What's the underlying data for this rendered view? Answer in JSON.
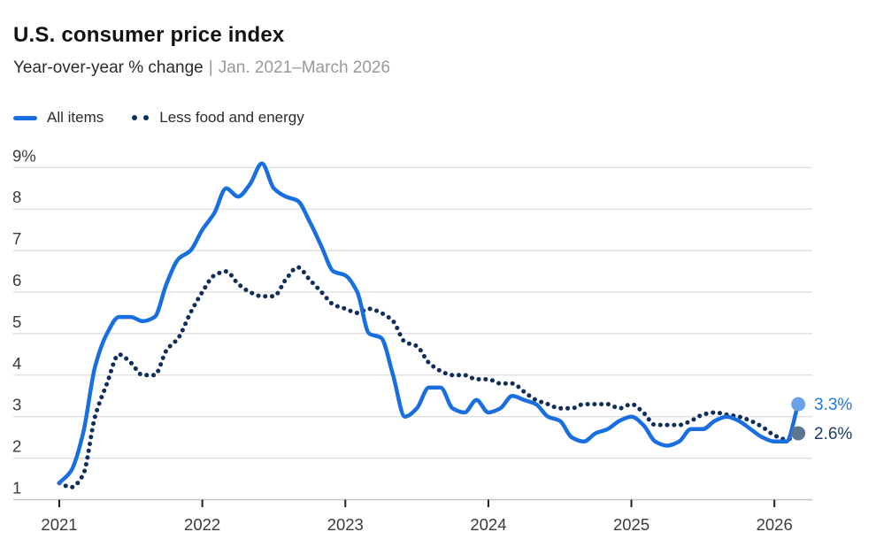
{
  "header": {
    "title": "U.S. consumer price index",
    "subtitle_main": "Year-over-year % change",
    "subtitle_sep": "|",
    "subtitle_range": "Jan. 2021–March 2026"
  },
  "legend": [
    {
      "label": "All items",
      "style": "solid",
      "color": "#1a6fe0"
    },
    {
      "label": "Less food and energy",
      "style": "dotted",
      "color": "#102e5c"
    }
  ],
  "chart_data": {
    "type": "line",
    "title": "U.S. consumer price index",
    "subtitle": "Year-over-year % change | Jan. 2021–March 2026",
    "x_range": [
      "Jan. 2021",
      "March 2026"
    ],
    "x_tick_labels": [
      "2021",
      "2022",
      "2023",
      "2024",
      "2025",
      "2026"
    ],
    "y_tick_labels": [
      "9%",
      "8",
      "7",
      "6",
      "5",
      "4",
      "3",
      "2",
      "1"
    ],
    "y_tick_values": [
      9,
      8,
      7,
      6,
      5,
      4,
      3,
      2,
      1
    ],
    "ylim": [
      1,
      9
    ],
    "grid": "horizontal",
    "legend_position": "top-left",
    "months_per_point": 1,
    "series": [
      {
        "name": "All items",
        "style": "solid",
        "color": "#1a6fe0",
        "end_label": "3.3%",
        "end_label_color": "#2176d9",
        "end_marker_color": "#6ba1e8",
        "values": [
          1.4,
          1.7,
          2.6,
          4.2,
          5.0,
          5.4,
          5.4,
          5.3,
          5.4,
          6.2,
          6.8,
          7.0,
          7.5,
          7.9,
          8.5,
          8.3,
          8.6,
          9.1,
          8.5,
          8.3,
          8.2,
          7.7,
          7.1,
          6.5,
          6.4,
          6.0,
          5.0,
          4.9,
          4.0,
          3.0,
          3.2,
          3.7,
          3.7,
          3.2,
          3.1,
          3.4,
          3.1,
          3.2,
          3.5,
          3.4,
          3.3,
          3.0,
          2.9,
          2.5,
          2.4,
          2.6,
          2.7,
          2.9,
          3.0,
          2.8,
          2.4,
          2.3,
          2.4,
          2.7,
          2.7,
          2.9,
          3.0,
          2.9,
          2.7,
          2.5,
          2.4,
          2.4,
          3.3
        ]
      },
      {
        "name": "Less food and energy",
        "style": "dotted",
        "color": "#102e5c",
        "end_label": "2.6%",
        "end_label_color": "#1b3a66",
        "end_marker_color": "#5d7493",
        "values": [
          1.4,
          1.3,
          1.6,
          3.0,
          3.8,
          4.5,
          4.3,
          4.0,
          4.0,
          4.6,
          4.9,
          5.5,
          6.0,
          6.4,
          6.5,
          6.2,
          6.0,
          5.9,
          5.9,
          6.3,
          6.6,
          6.3,
          6.0,
          5.7,
          5.6,
          5.5,
          5.6,
          5.5,
          5.3,
          4.8,
          4.7,
          4.3,
          4.1,
          4.0,
          4.0,
          3.9,
          3.9,
          3.8,
          3.8,
          3.6,
          3.4,
          3.3,
          3.2,
          3.2,
          3.3,
          3.3,
          3.3,
          3.2,
          3.3,
          3.1,
          2.8,
          2.8,
          2.8,
          2.9,
          3.05,
          3.1,
          3.05,
          3.0,
          2.9,
          2.75,
          2.55,
          2.45,
          2.6
        ]
      }
    ]
  },
  "colors": {
    "gridline": "#d9d9d9",
    "axis_line": "#c2c2c2",
    "tick": "#1f1f1f",
    "axis_label": "#3b3b3b",
    "background": "#ffffff"
  }
}
